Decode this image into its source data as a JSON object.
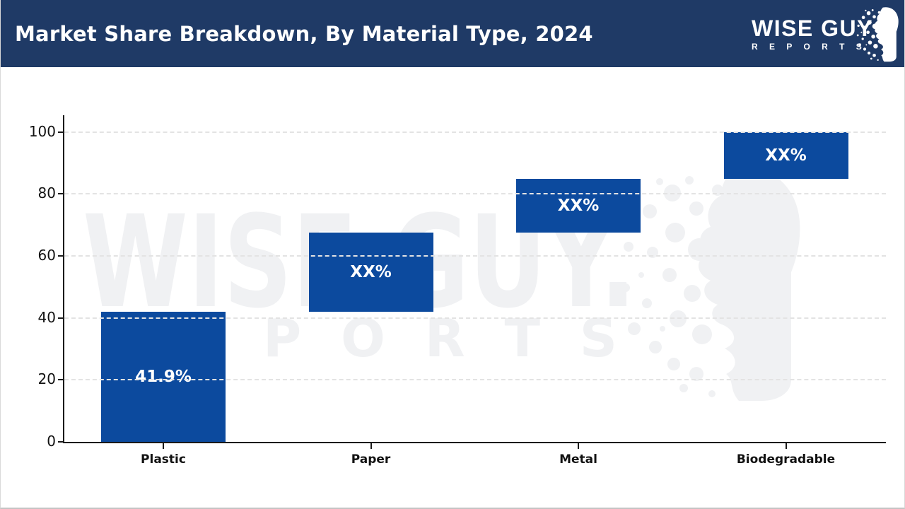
{
  "header": {
    "title": "Market Share Breakdown, By Material Type, 2024",
    "logo": {
      "line1": "WISE GUY",
      "line2": "R E P O R T S"
    }
  },
  "watermark": {
    "line1": "WISE GUY.",
    "line2": "R E P O R T S"
  },
  "colors": {
    "header_bg": "#1f3a66",
    "header_text": "#ffffff",
    "bar": "#0c4a9e",
    "bar_label": "#ffffff",
    "axis": "#1a1a1a",
    "tick_text": "#111111",
    "grid": "#e3e3e3",
    "watermark": "#f0f1f3",
    "page_bg": "#ffffff"
  },
  "chart_data": {
    "type": "bar",
    "subtype": "waterfall",
    "title": "Market Share Breakdown, By Material Type, 2024",
    "categories": [
      "Plastic",
      "Paper",
      "Metal",
      "Biodegradable"
    ],
    "bar_labels": [
      "41.9%",
      "XX%",
      "XX%",
      "XX%"
    ],
    "bar_start": [
      0,
      41.9,
      67.5,
      84.8
    ],
    "bar_end": [
      41.9,
      67.5,
      84.8,
      100
    ],
    "segment_values_estimated": [
      41.9,
      25.6,
      17.3,
      15.2
    ],
    "xlabel": "",
    "ylabel": "",
    "ylim": [
      0,
      100
    ],
    "yticks": [
      0,
      20,
      40,
      60,
      80,
      100
    ],
    "grid": "dashed-horizontal-above-bars",
    "legend": "none"
  }
}
